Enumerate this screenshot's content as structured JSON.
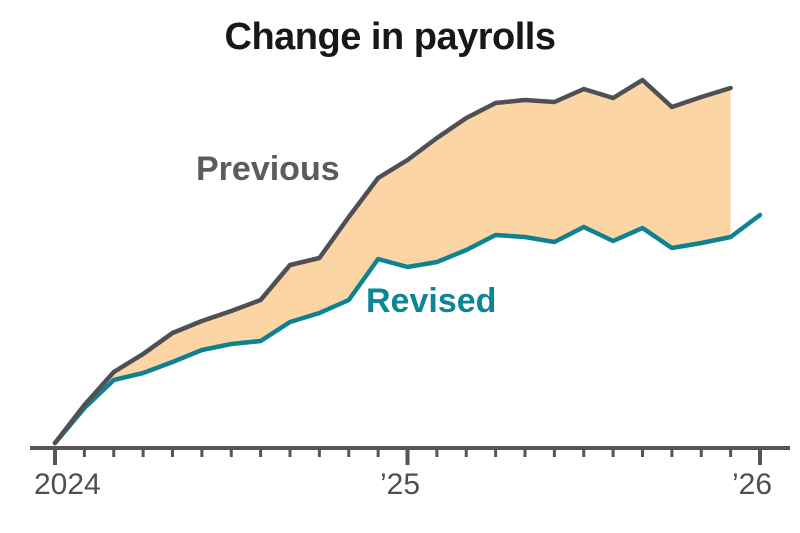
{
  "chart_data": {
    "type": "line",
    "title": "Change in payrolls",
    "subtitle": "",
    "x_unit": "month",
    "x": [
      "Jan 2024",
      "Feb 2024",
      "Mar 2024",
      "Apr 2024",
      "May 2024",
      "Jun 2024",
      "Jul 2024",
      "Aug 2024",
      "Sep 2024",
      "Oct 2024",
      "Nov 2024",
      "Dec 2024",
      "Jan 2025",
      "Feb 2025",
      "Mar 2025",
      "Apr 2025",
      "May 2025",
      "Jun 2025",
      "Jul 2025",
      "Aug 2025",
      "Sep 2025",
      "Oct 2025",
      "Nov 2025",
      "Dec 2025",
      "Jan 2026"
    ],
    "y_axis": "unlabeled (relative cumulative change, arbitrary units)",
    "ylim": [
      0,
      400
    ],
    "grid": false,
    "legend_position": "inline-labels-on-chart",
    "series": [
      {
        "name": "Previous",
        "color": "#4f4f54",
        "values": [
          5,
          43,
          76,
          94,
          115,
          127,
          137,
          148,
          183,
          190,
          231,
          270,
          288,
          310,
          330,
          345,
          348,
          346,
          359,
          350,
          368,
          341,
          351,
          360
        ]
      },
      {
        "name": "Revised",
        "color": "#0e8192",
        "values": [
          5,
          40,
          68,
          75,
          86,
          98,
          104,
          107,
          126,
          135,
          148,
          189,
          181,
          186,
          198,
          213,
          211,
          206,
          221,
          207,
          220,
          200,
          205,
          211,
          233
        ]
      }
    ],
    "fill_between": {
      "from": "Previous",
      "to": "Revised",
      "color": "#fcd5a5",
      "note": "shaded gap between previous and revised estimates; ends where Previous series ends (Dec 2025)"
    },
    "x_tick_labels": [
      {
        "text": "2024",
        "month_index": 0
      },
      {
        "text": "’25",
        "month_index": 12
      },
      {
        "text": "’26",
        "month_index": 24
      }
    ],
    "axis_color": "#55555a"
  }
}
